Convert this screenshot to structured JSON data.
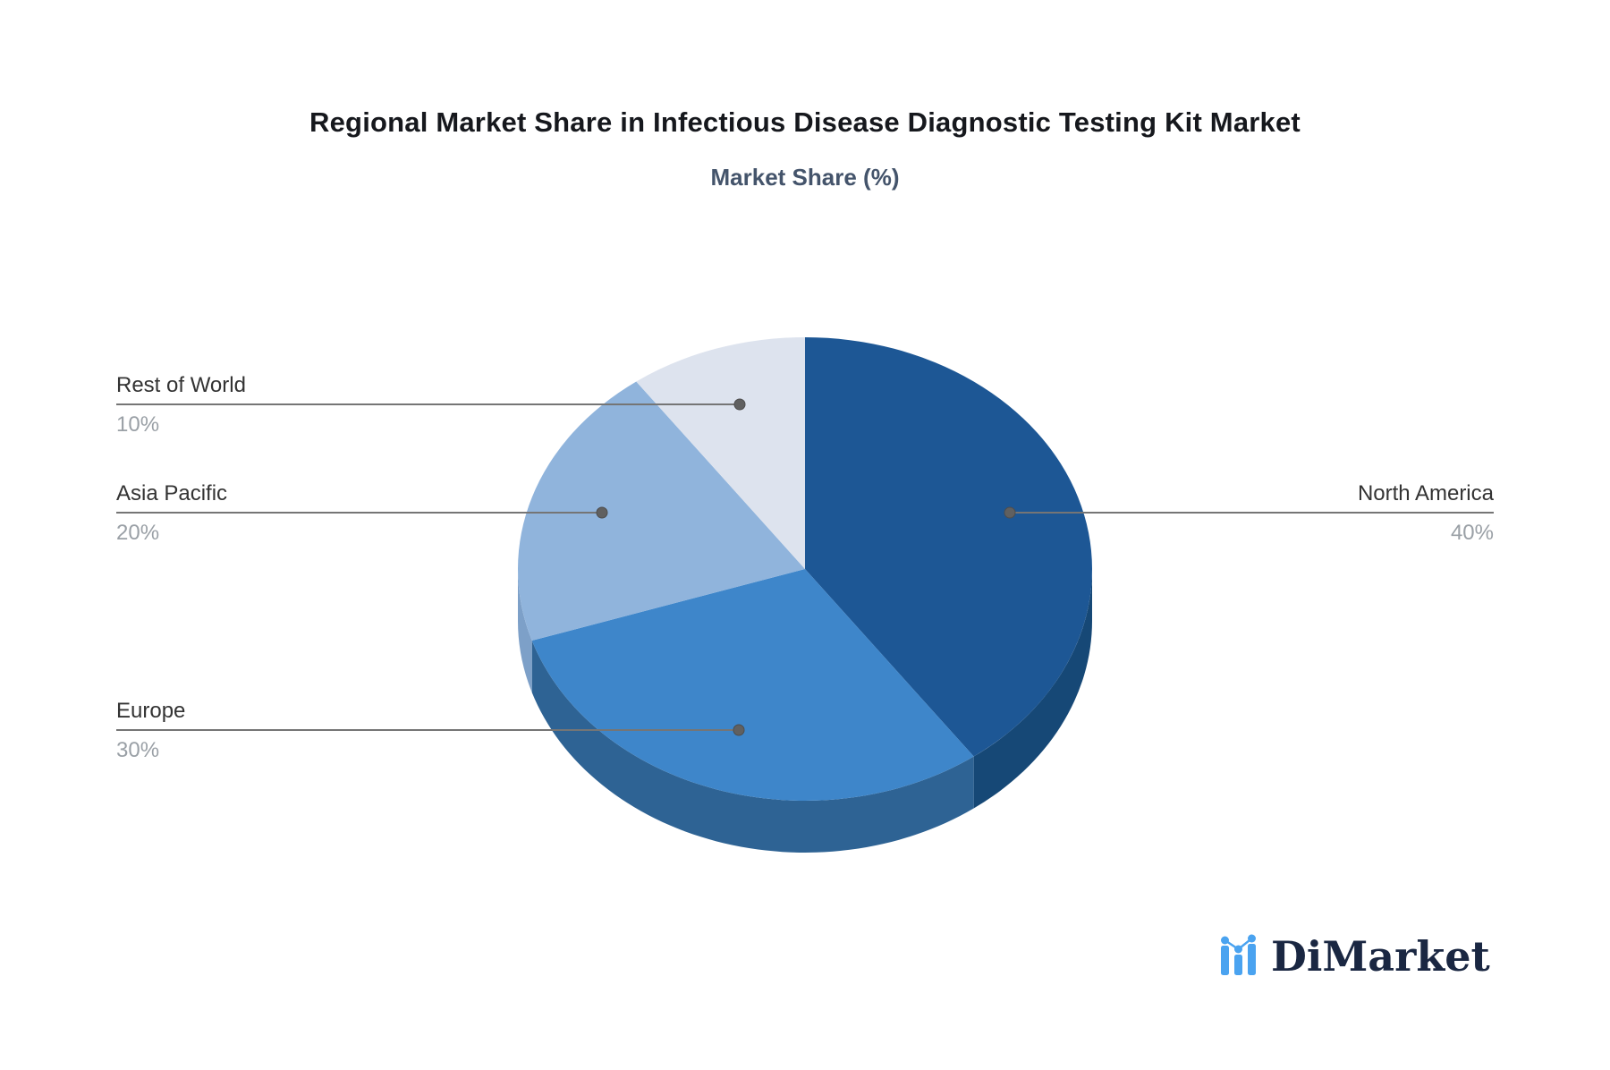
{
  "page": {
    "background": "#ffffff"
  },
  "header": {
    "title": "Regional Market Share in Infectious Disease Diagnostic Testing Kit Market",
    "subtitle": "Market Share (%)"
  },
  "chart_data": {
    "type": "pie",
    "style": "3d",
    "title": "Regional Market Share in Infectious Disease Diagnostic Testing Kit Market",
    "subtitle": "Market Share (%)",
    "unit": "%",
    "start_angle_deg": 0,
    "direction": "clockwise",
    "legend_position": "callout-labels",
    "slices": [
      {
        "label": "North America",
        "value": 40,
        "share_text": "40%",
        "color": "#1d5795",
        "side_color": "#164876"
      },
      {
        "label": "Europe",
        "value": 30,
        "share_text": "30%",
        "color": "#3e86ca",
        "side_color": "#2e6394"
      },
      {
        "label": "Asia Pacific",
        "value": 20,
        "share_text": "20%",
        "color": "#90b4dc",
        "side_color": "#7da0c8"
      },
      {
        "label": "Rest of World",
        "value": 10,
        "share_text": "10%",
        "color": "#dde3ee",
        "side_color": "#c2cde0"
      }
    ],
    "callout_style": {
      "line_color": "#757575",
      "dot_color": "#606060",
      "label_color": "#333333",
      "value_color": "#9aa0a6"
    }
  },
  "branding": {
    "logo_text": "DiMarket",
    "logo_text_color": "#1a2742",
    "icon_color": "#4aa3f0"
  }
}
